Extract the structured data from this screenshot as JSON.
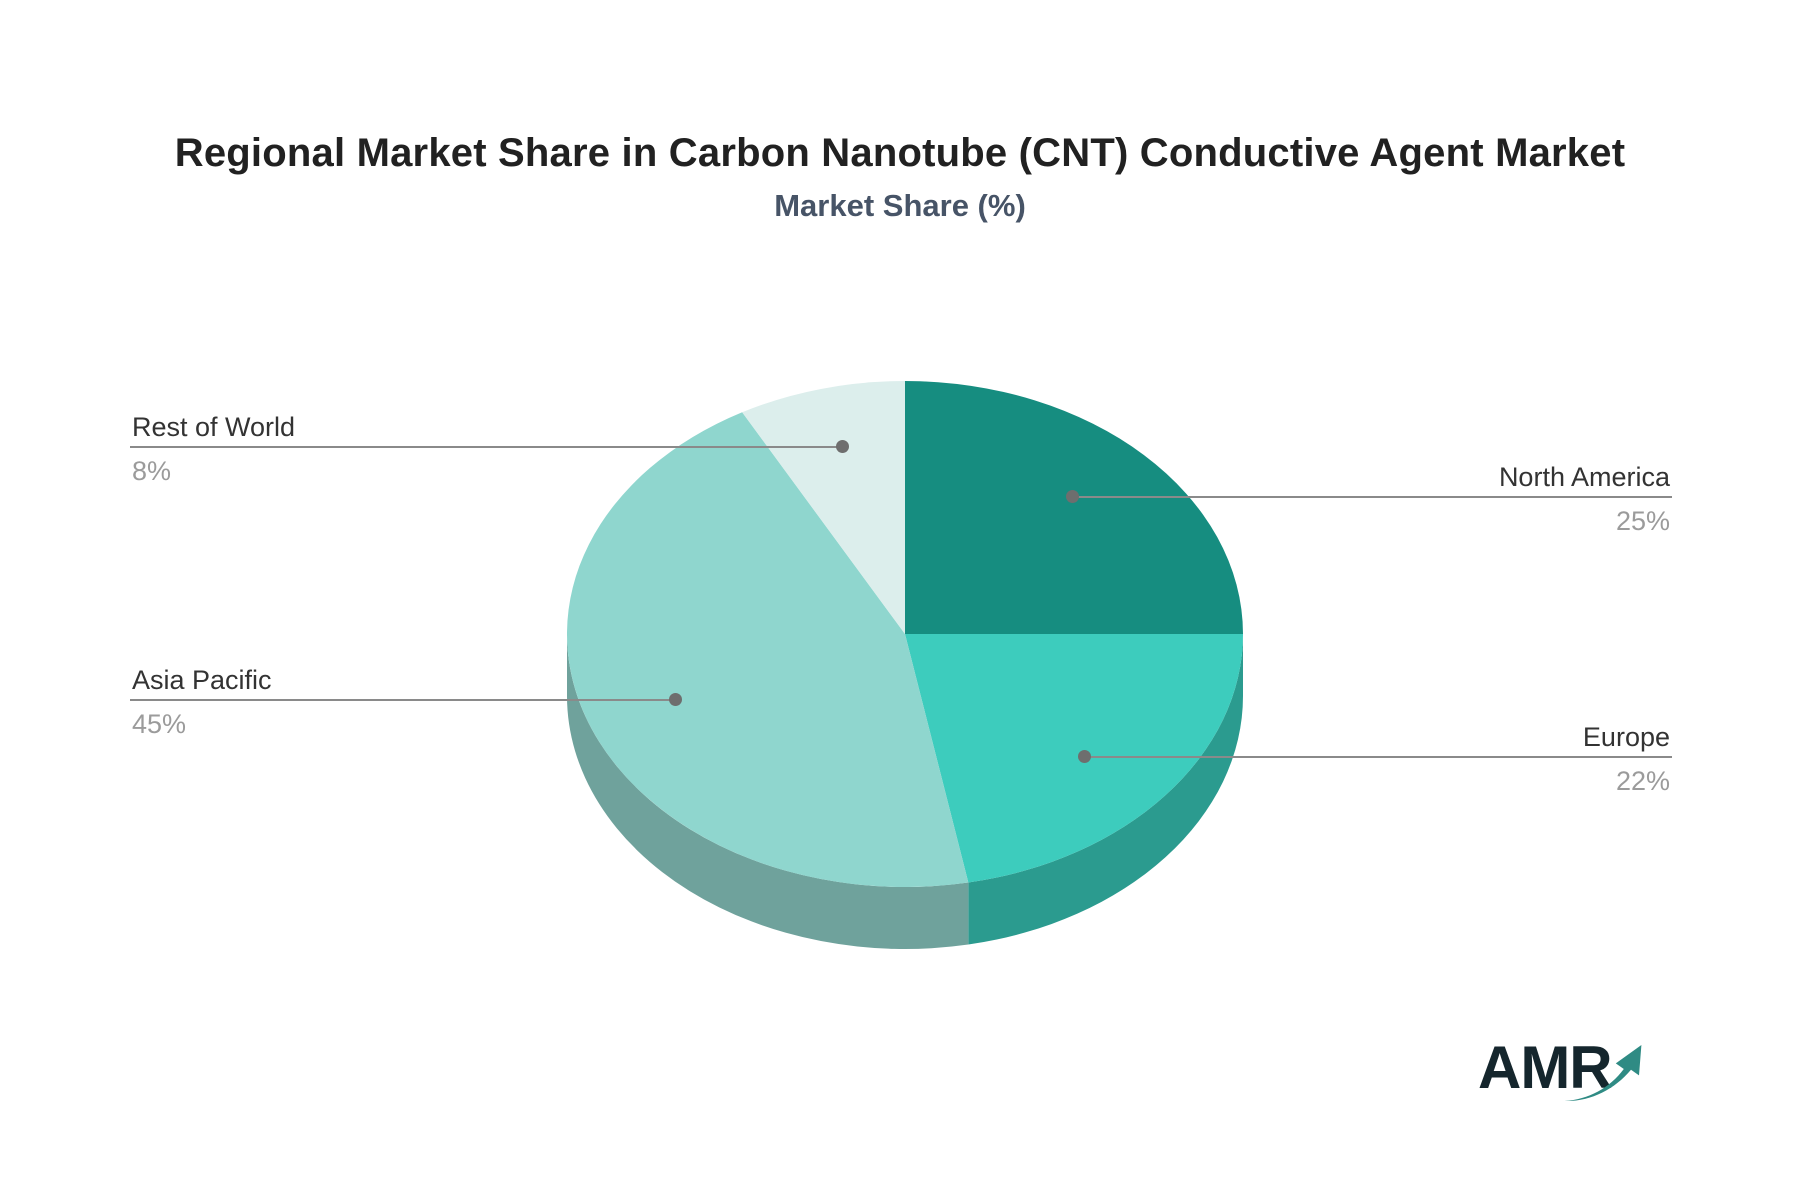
{
  "header": {
    "title": "Regional Market Share in Carbon Nanotube (CNT) Conductive Agent Market",
    "subtitle": "Market Share (%)"
  },
  "chart_data": {
    "type": "pie",
    "style": "3d",
    "title": "Regional Market Share in Carbon Nanotube (CNT) Conductive Agent Market",
    "subtitle": "Market Share (%)",
    "unit": "%",
    "start_angle_deg": 0,
    "direction": "clockwise",
    "legend": "none",
    "labels_style": "callout-leader-lines",
    "categories": [
      "North America",
      "Europe",
      "Asia Pacific",
      "Rest of World"
    ],
    "values": [
      25,
      22,
      45,
      8
    ],
    "slices": [
      {
        "name": "North America",
        "value": 25,
        "value_label": "25%",
        "color": "#168D80",
        "side_color": "#0F776C"
      },
      {
        "name": "Europe",
        "value": 22,
        "value_label": "22%",
        "color": "#3DCCBD",
        "side_color": "#2B9B8F"
      },
      {
        "name": "Asia Pacific",
        "value": 45,
        "value_label": "45%",
        "color": "#8FD6CE",
        "side_color": "#6FA29C"
      },
      {
        "name": "Rest of World",
        "value": 8,
        "value_label": "8%",
        "color": "#DCEEEC",
        "side_color": "#AECFCA"
      }
    ],
    "callout_line_color": "#8a8a8a",
    "callout_dot_color": "#6e6e6e",
    "label_text_color": "#333333",
    "value_text_color": "#9b9b9b"
  },
  "logo": {
    "text": "AMR",
    "text_color": "#15262D",
    "arrow_color": "#2F8B84"
  }
}
